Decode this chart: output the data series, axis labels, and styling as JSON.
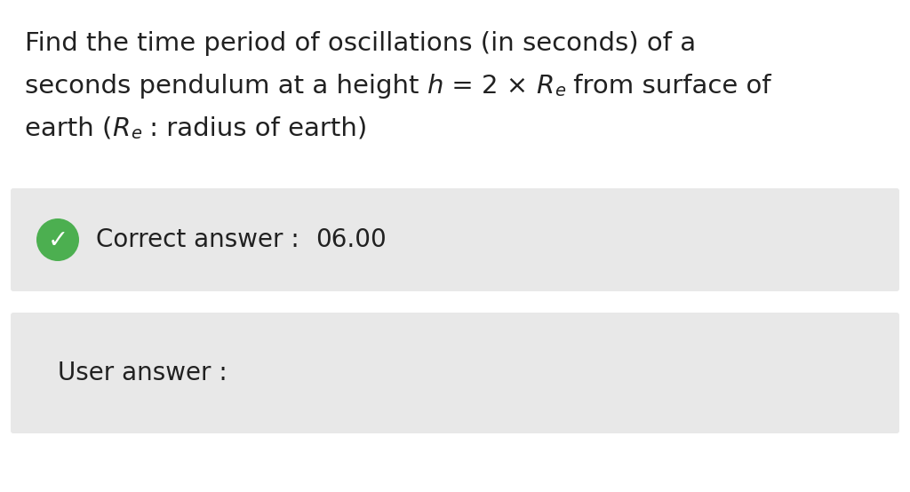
{
  "background_color": "#ffffff",
  "line1": "Find the time period of oscillations (in seconds) of a",
  "line2_parts": [
    {
      "text": "seconds pendulum at a height ",
      "italic": false,
      "sub": false
    },
    {
      "text": "h",
      "italic": true,
      "sub": false
    },
    {
      "text": " = 2 × ",
      "italic": false,
      "sub": false
    },
    {
      "text": "R",
      "italic": true,
      "sub": false
    },
    {
      "text": "e",
      "italic": true,
      "sub": true
    },
    {
      "text": " from surface of",
      "italic": false,
      "sub": false
    }
  ],
  "line3_parts": [
    {
      "text": "earth (",
      "italic": false,
      "sub": false
    },
    {
      "text": "R",
      "italic": true,
      "sub": false
    },
    {
      "text": "e",
      "italic": true,
      "sub": true
    },
    {
      "text": " : radius of earth)",
      "italic": false,
      "sub": false
    }
  ],
  "correct_box_color": "#e8e8e8",
  "user_box_color": "#e8e8e8",
  "correct_answer_label": "Correct answer :",
  "correct_answer_value": "06.00",
  "user_answer_label": "User answer :",
  "check_circle_color": "#4caf50",
  "check_color": "#ffffff",
  "text_color": "#212121",
  "font_size_question": 21,
  "font_size_answer": 20,
  "font_size_sub": 14
}
